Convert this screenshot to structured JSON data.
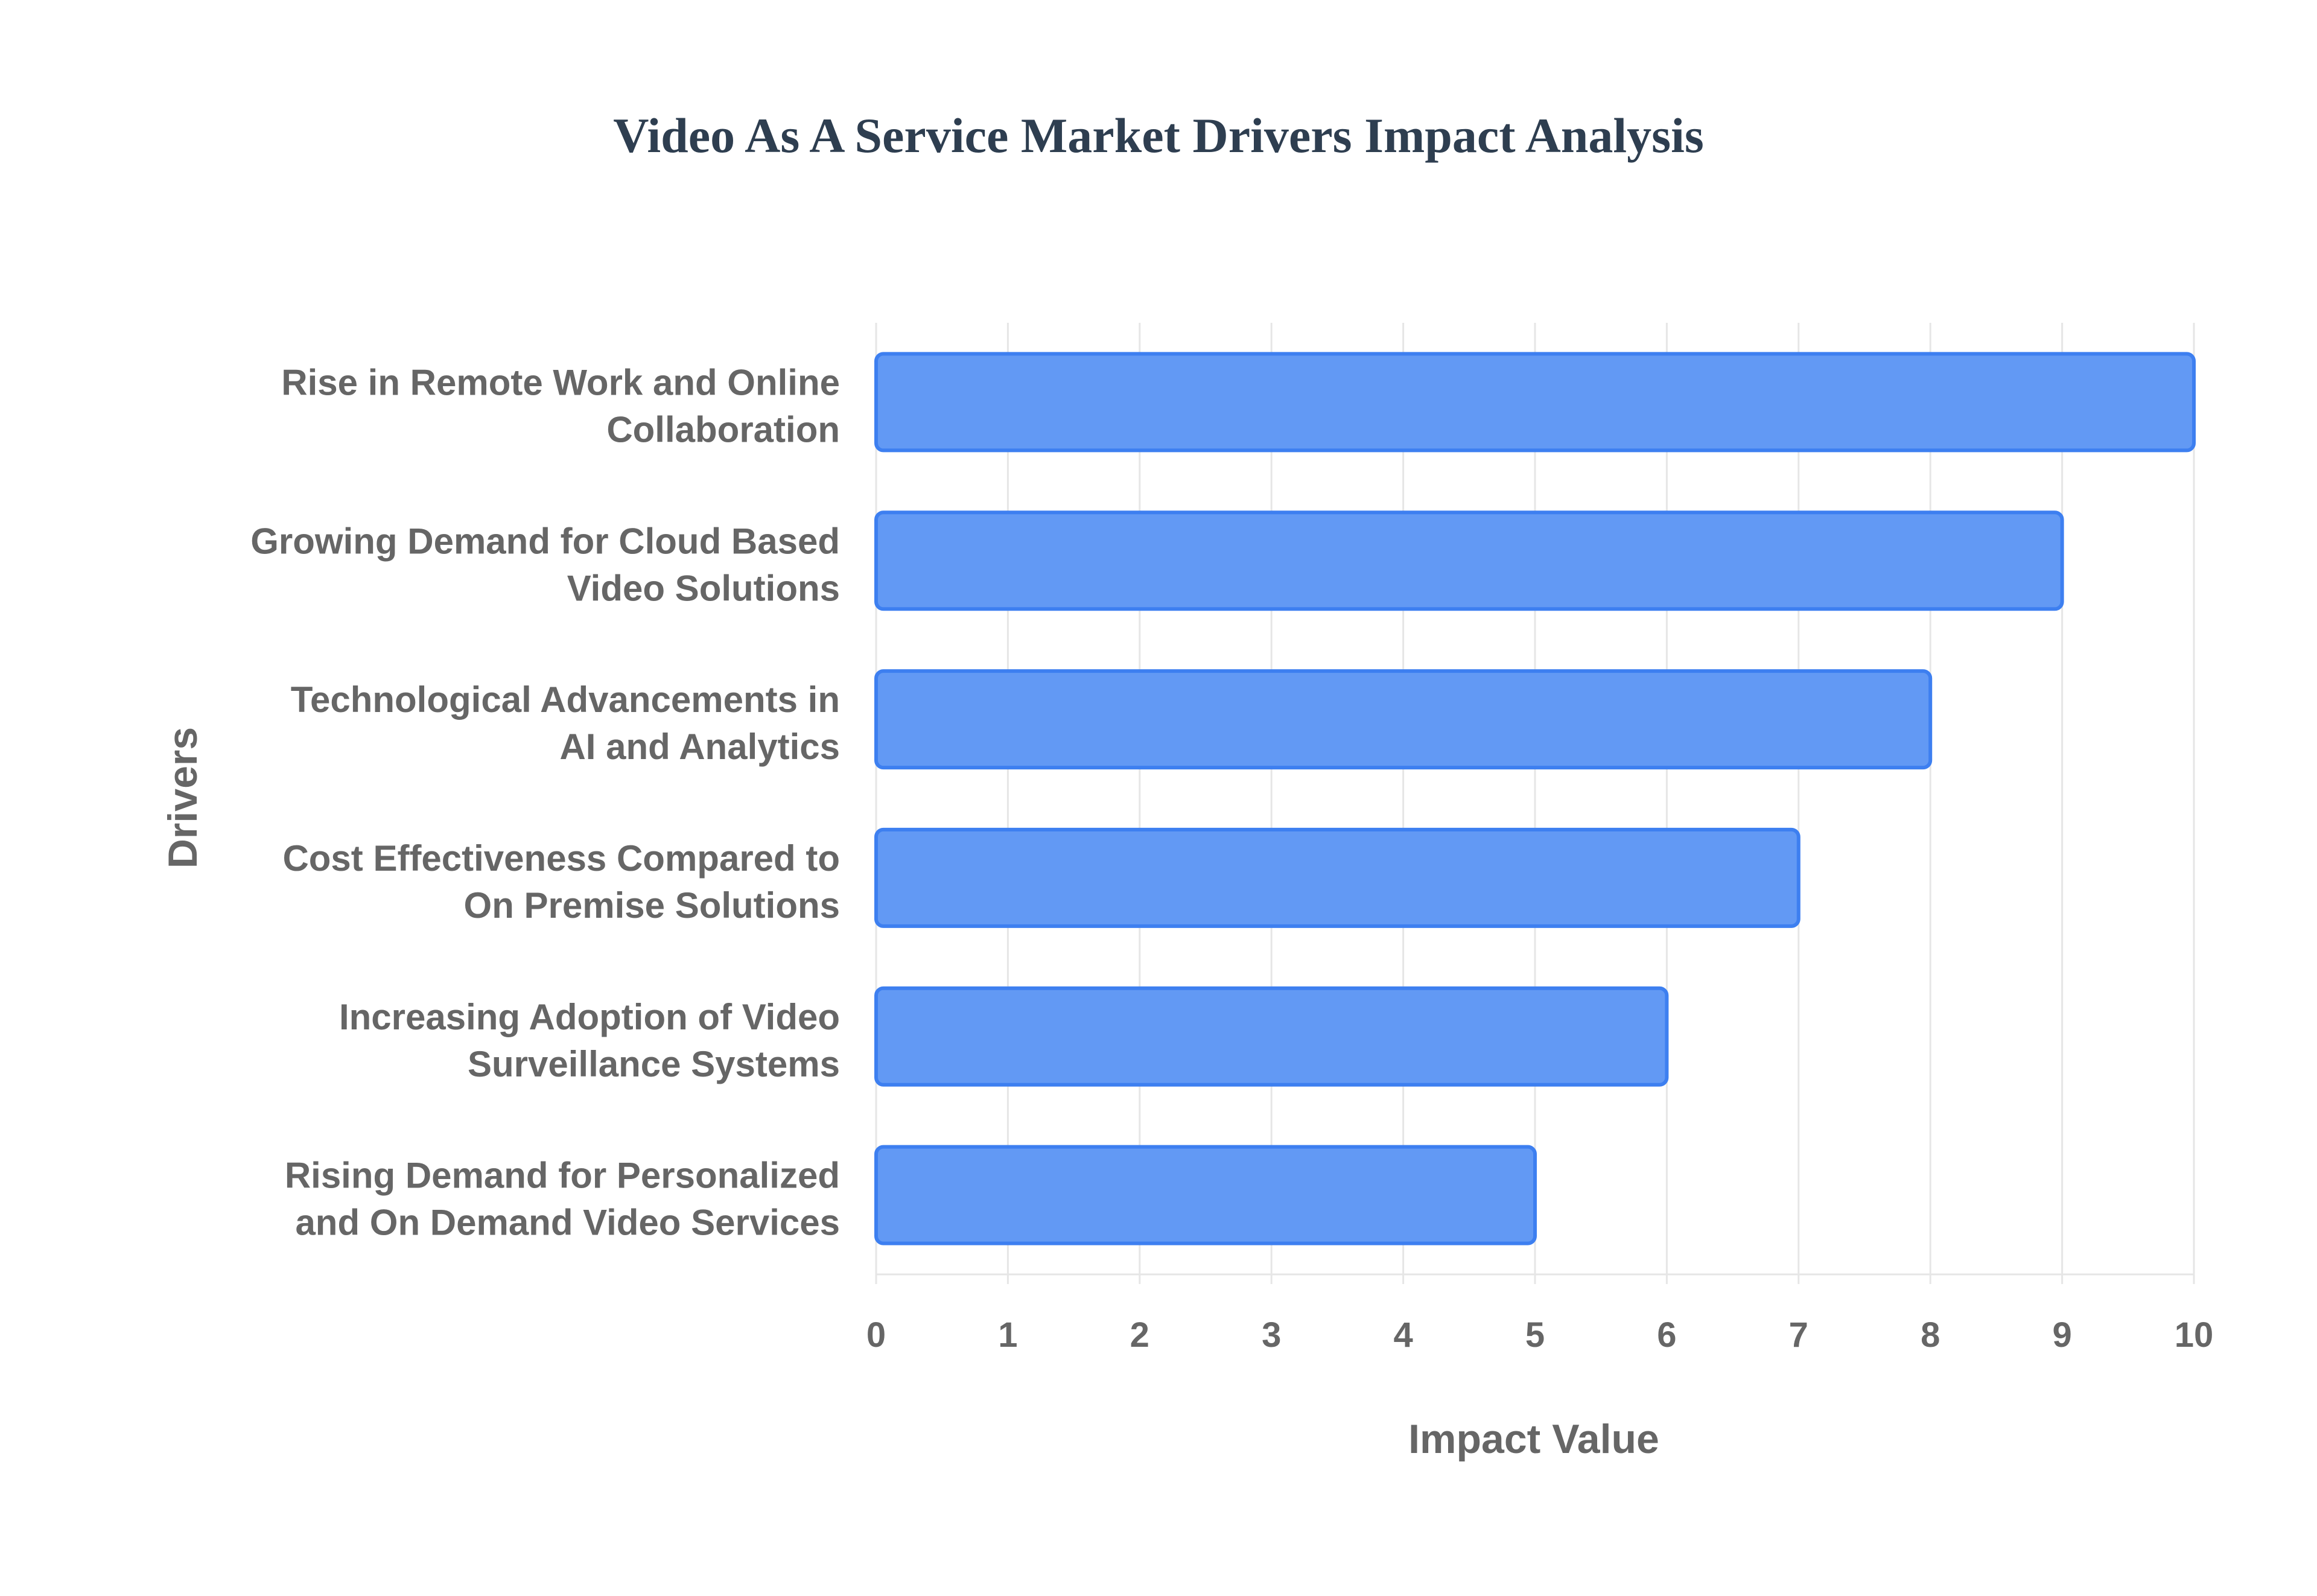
{
  "chart_data": {
    "type": "bar",
    "orientation": "horizontal",
    "title": "Video As A Service Market Drivers Impact Analysis",
    "xlabel": "Impact Value",
    "ylabel": "Drivers",
    "categories": [
      [
        "Rise in Remote Work and Online",
        "Collaboration"
      ],
      [
        "Growing Demand for Cloud Based",
        "Video Solutions"
      ],
      [
        "Technological Advancements in",
        "AI and Analytics"
      ],
      [
        "Cost Effectiveness Compared to",
        "On Premise Solutions"
      ],
      [
        "Increasing Adoption of Video",
        "Surveillance Systems"
      ],
      [
        "Rising Demand for Personalized",
        "and On Demand Video Services"
      ]
    ],
    "values": [
      10,
      9,
      8,
      7,
      6,
      5
    ],
    "xlim": [
      0,
      10
    ],
    "xticks": [
      "0",
      "1",
      "2",
      "3",
      "4",
      "5",
      "6",
      "7",
      "8",
      "9",
      "10"
    ],
    "grid": true,
    "legend": "none",
    "colors": {
      "bar_fill": "#6299f4",
      "bar_stroke": "#3d7ff0",
      "grid": "#e6e6e6",
      "text": "#666666",
      "title": "#2e3e50"
    }
  }
}
